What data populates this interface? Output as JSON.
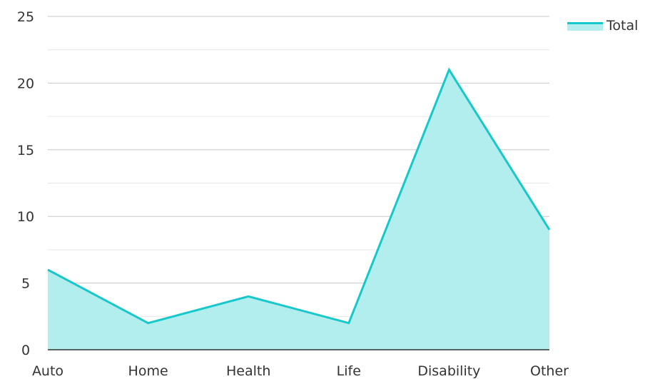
{
  "chart_data": {
    "type": "area",
    "categories": [
      "Auto",
      "Home",
      "Health",
      "Life",
      "Disability",
      "Other"
    ],
    "series": [
      {
        "name": "Total",
        "values": [
          6,
          2,
          4,
          2,
          21,
          9
        ]
      }
    ],
    "y_ticks": [
      "0",
      "5",
      "10",
      "15",
      "20",
      "25"
    ],
    "ylim": [
      0,
      25
    ],
    "grid": true,
    "legend_position": "top-right",
    "colors": {
      "line": "#17c8cb",
      "fill": "#b2eeee",
      "grid_major": "#c8c8c8",
      "grid_minor": "#e6e6e6",
      "axis": "#333333"
    }
  }
}
